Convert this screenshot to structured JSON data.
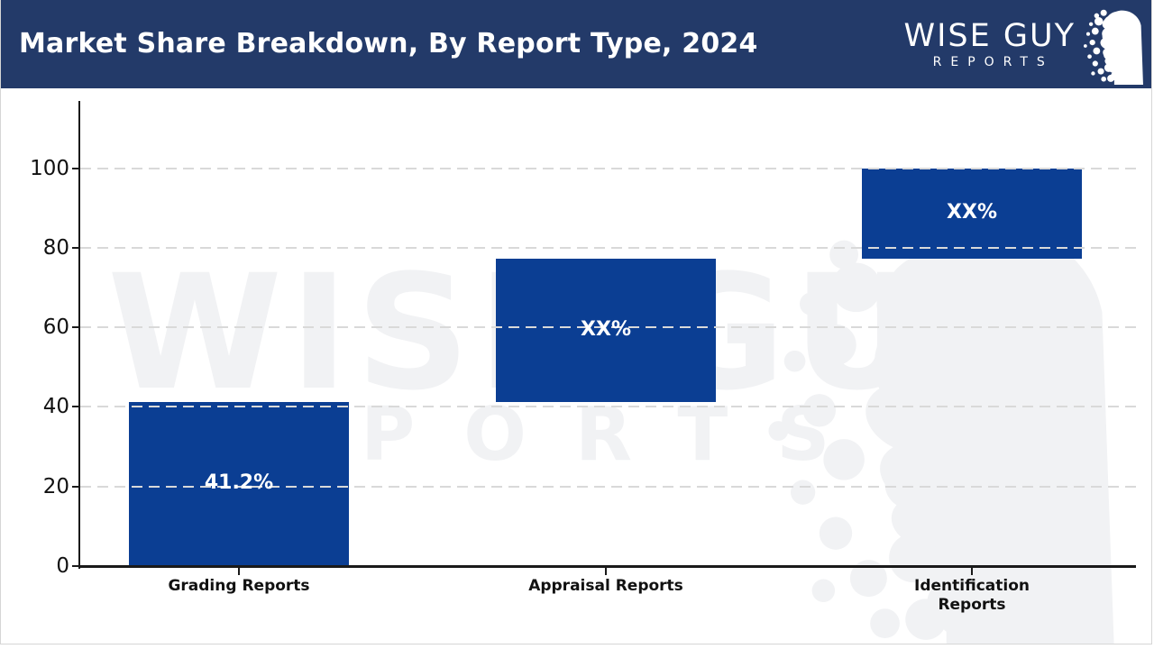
{
  "header": {
    "title": "Market Share Breakdown, By Report Type, 2024",
    "logo": {
      "name": "WISE GUY",
      "sub": "REPORTS"
    }
  },
  "watermark": {
    "name": "WISE GUY",
    "sub": "REPORTS"
  },
  "colors": {
    "header_bg": "#233a69",
    "bar": "#0b3e93",
    "grid": "#d9d9d9",
    "axis": "#1a1a1a",
    "bar_label": "#ffffff",
    "watermark": "#f1f2f4"
  },
  "chart_data": {
    "type": "bar",
    "subtype": "floating-waterfall",
    "title": "Market Share Breakdown, By Report Type, 2024",
    "xlabel": "",
    "ylabel": "",
    "ylim": [
      0,
      100
    ],
    "yticks": [
      0,
      20,
      40,
      60,
      80,
      100
    ],
    "grid": "horizontal-dashed",
    "legend": "none",
    "categories": [
      "Grading Reports",
      "Appraisal Reports",
      "Identification Reports"
    ],
    "bars": [
      {
        "category": "Grading Reports",
        "start": 0,
        "end": 41.2,
        "label": "41.2%"
      },
      {
        "category": "Appraisal Reports",
        "start": 41.2,
        "end": 77.2,
        "label": "XX%"
      },
      {
        "category": "Identification Reports",
        "start": 77.2,
        "end": 100,
        "label": "XX%"
      }
    ]
  }
}
